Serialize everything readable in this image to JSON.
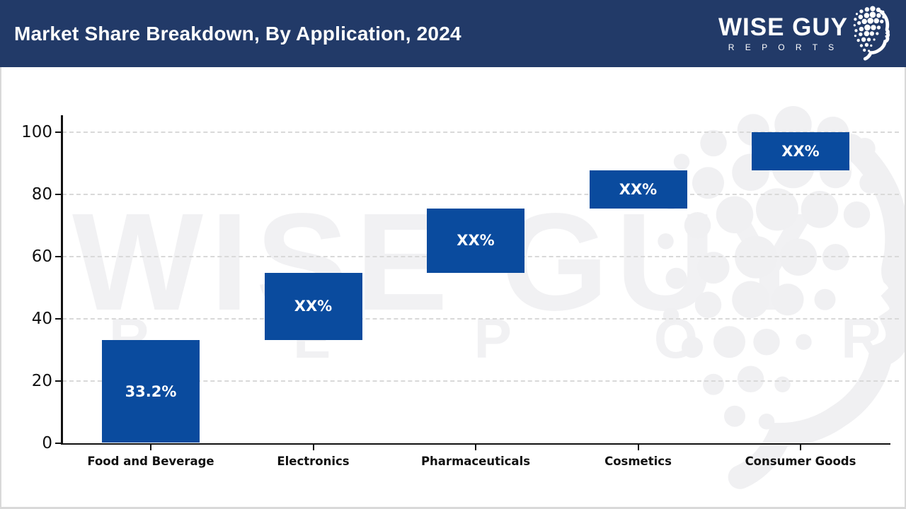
{
  "header": {
    "title": "Market Share Breakdown, By Application, 2024",
    "logo": {
      "line1": "WISE GUY",
      "line2": "R E P O R T S"
    }
  },
  "watermark": {
    "line1": "WISE GUY",
    "line2": "REPORTS"
  },
  "colors": {
    "header_bg": "#223a68",
    "bar": "#0a4b9e",
    "bar_label": "#ffffff",
    "grid": "#d9d9d9",
    "axis": "#111111",
    "watermark": "#f1f1f3",
    "border": "#d9d9d9"
  },
  "chart_data": {
    "type": "bar",
    "subtype": "waterfall",
    "title": "Market Share Breakdown, By Application, 2024",
    "categories": [
      "Food and Beverage",
      "Electronics",
      "Pharmaceuticals",
      "Cosmetics",
      "Consumer Goods"
    ],
    "bars": [
      {
        "category": "Food and Beverage",
        "start": 0,
        "end": 33.2,
        "label": "33.2%"
      },
      {
        "category": "Electronics",
        "start": 33.2,
        "end": 54.8,
        "label": "XX%"
      },
      {
        "category": "Pharmaceuticals",
        "start": 54.8,
        "end": 75.4,
        "label": "XX%"
      },
      {
        "category": "Cosmetics",
        "start": 75.4,
        "end": 87.8,
        "label": "XX%"
      },
      {
        "category": "Consumer Goods",
        "start": 87.8,
        "end": 100,
        "label": "XX%"
      }
    ],
    "xlabel": "",
    "ylabel": "",
    "ylim": [
      0,
      100
    ],
    "yticks": [
      0,
      20,
      40,
      60,
      80,
      100
    ],
    "grid": "horizontal-dashed",
    "legend": "none"
  }
}
